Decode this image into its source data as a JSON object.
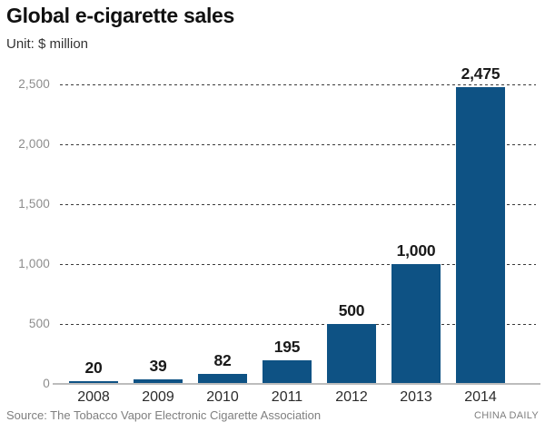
{
  "header": {
    "title": "Global e-cigarette sales",
    "subtitle": "Unit: $ million"
  },
  "footer": {
    "source": "Source: The Tobacco Vapor Electronic Cigarette Association",
    "credit": "CHINA DAILY"
  },
  "colors": {
    "bar": "#0e5284",
    "grid": "#3a3a3a",
    "axis_line": "#bcbcbc",
    "ytick_text": "#8c8c8c",
    "value_text": "#1a1a1a"
  },
  "chart_data": {
    "type": "bar",
    "title": "Global e-cigarette sales",
    "ylabel": "$ million",
    "categories": [
      "2008",
      "2009",
      "2010",
      "2011",
      "2012",
      "2013",
      "2014"
    ],
    "values": [
      20,
      39,
      82,
      195,
      500,
      1000,
      2475
    ],
    "value_labels": [
      "20",
      "39",
      "82",
      "195",
      "500",
      "1,000",
      "2,475"
    ],
    "ylim": [
      0,
      2500
    ],
    "yticks": [
      0,
      500,
      1000,
      1500,
      2000,
      2500
    ],
    "ytick_labels": [
      "0",
      "500",
      "1,000",
      "1,500",
      "2,000",
      "2,500"
    ],
    "grid": "horizontal-dashed",
    "legend": "none"
  }
}
